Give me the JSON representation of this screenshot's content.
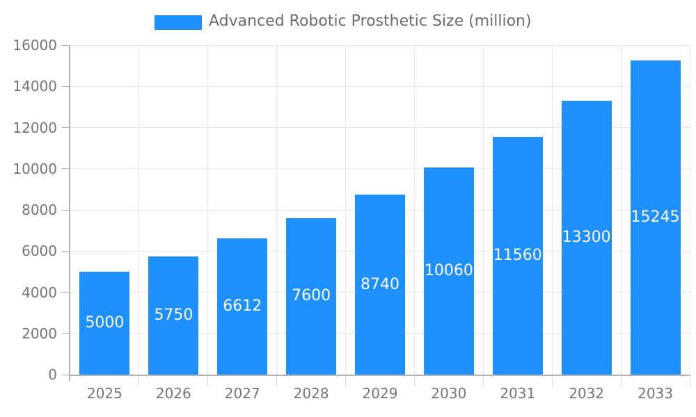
{
  "legend": {
    "label": "Advanced Robotic Prosthetic Size (million)"
  },
  "chart_data": {
    "type": "bar",
    "title": "",
    "xlabel": "",
    "ylabel": "",
    "categories": [
      "2025",
      "2026",
      "2027",
      "2028",
      "2029",
      "2030",
      "2031",
      "2032",
      "2033"
    ],
    "series": [
      {
        "name": "Advanced Robotic Prosthetic Size (million)",
        "values": [
          5000,
          5750,
          6612,
          7600,
          8740,
          10060,
          11560,
          13300,
          15245
        ]
      }
    ],
    "value_labels": [
      "5000",
      "5750",
      "6612",
      "7600",
      "8740",
      "10060",
      "11560",
      "13300",
      "15245"
    ],
    "value_label_position": "inside-center",
    "ylim": [
      0,
      16000
    ],
    "yticks": [
      0,
      2000,
      4000,
      6000,
      8000,
      10000,
      12000,
      14000,
      16000
    ],
    "grid": true,
    "legend_position": "top-center",
    "colors": {
      "bar": "#1E90FF",
      "grid": "#e6e6e6",
      "spine": "#b3b3b3",
      "xtick": "#d9d9d9",
      "tick_label": "#757575",
      "legend_text": "#6e6e6e",
      "value_label": "#ffffff",
      "background": "#ffffff"
    }
  }
}
